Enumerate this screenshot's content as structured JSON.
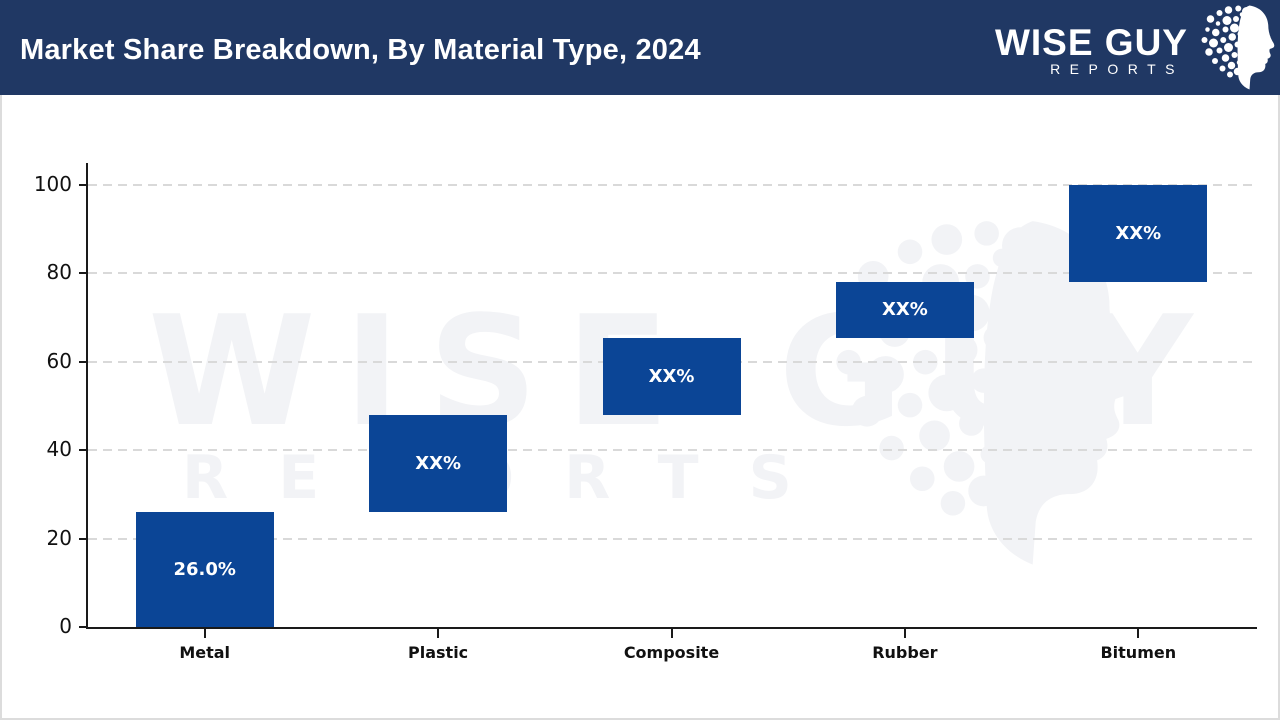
{
  "header": {
    "title": "Market Share Breakdown, By Material Type, 2024",
    "logo_primary": "WISE GUY",
    "logo_secondary": "REPORTS",
    "bg_color": "#203864",
    "text_color": "#ffffff"
  },
  "watermark": {
    "line1": "WISE GUY",
    "line2": "REPORTS"
  },
  "chart_data": {
    "type": "bar",
    "subtype": "floating-waterfall",
    "title": "Market Share Breakdown, By Material Type, 2024",
    "categories": [
      "Metal",
      "Plastic",
      "Composite",
      "Rubber",
      "Bitumen"
    ],
    "series": [
      {
        "name": "Market share (%)",
        "segments": [
          {
            "category": "Metal",
            "start": 0,
            "end": 26,
            "label": "26.0%"
          },
          {
            "category": "Plastic",
            "start": 26,
            "end": 48,
            "label": "XX%"
          },
          {
            "category": "Composite",
            "start": 48,
            "end": 65.5,
            "label": "XX%"
          },
          {
            "category": "Rubber",
            "start": 65.5,
            "end": 78,
            "label": "XX%"
          },
          {
            "category": "Bitumen",
            "start": 78,
            "end": 100,
            "label": "XX%"
          }
        ]
      }
    ],
    "xlabel": "",
    "ylabel": "",
    "ylim": [
      0,
      105
    ],
    "yticks": [
      0,
      20,
      40,
      60,
      80,
      100
    ],
    "grid": "horizontal-dashed",
    "legend": "none",
    "bar_color": "#0b4596",
    "bar_label_color": "#ffffff",
    "axis_color": "#1a1a1a",
    "grid_color": "#d9d9d9"
  }
}
